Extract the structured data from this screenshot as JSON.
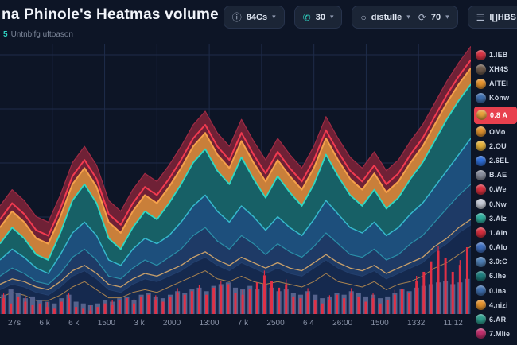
{
  "header": {
    "title": "na Phinole's Heatmas volume",
    "subtitle_count": "5",
    "subtitle_text": "Untnblfg uftoason"
  },
  "icons": {
    "info-icon": "ⓘ",
    "phone-icon": "✆",
    "circle-icon": "○",
    "refresh-icon": "⟳",
    "list-icon": "☰",
    "caret-down-icon": "▾"
  },
  "toolbar": {
    "groups": [
      [
        {
          "icon": "info-icon",
          "accent": false,
          "label": "84Cs",
          "caret": true
        }
      ],
      [
        {
          "icon": "phone-icon",
          "accent": true,
          "label": "30",
          "caret": true
        }
      ],
      [
        {
          "icon": "circle-icon",
          "accent": false,
          "label": "distulle",
          "caret": true
        },
        {
          "icon": "refresh-icon",
          "accent": false,
          "label": "70",
          "caret": true
        }
      ],
      [
        {
          "icon": "list-icon",
          "accent": false,
          "label": "I[]HBS",
          "caret": false
        }
      ]
    ]
  },
  "sidebar": {
    "items": [
      {
        "label": "1.IEB",
        "color": "#d93344",
        "selected": false
      },
      {
        "label": "XH4S",
        "color": "#6e5a4c",
        "selected": false
      },
      {
        "label": "AITEI",
        "color": "#e8952f",
        "selected": false
      },
      {
        "label": "Kónw",
        "color": "#3f6fae",
        "selected": false
      },
      {
        "label": "0.8 A",
        "color": "#e8a23c",
        "selected": true
      },
      {
        "label": "OMo",
        "color": "#e0922f",
        "selected": false
      },
      {
        "label": "2.OU",
        "color": "#e8b43c",
        "selected": false
      },
      {
        "label": "2.6EL",
        "color": "#2f6fd9",
        "selected": false
      },
      {
        "label": "B.AE",
        "color": "#8a8f9e",
        "selected": false
      },
      {
        "label": "0.We",
        "color": "#d9303f",
        "selected": false
      },
      {
        "label": "0.Nw",
        "color": "#c8cdd8",
        "selected": false
      },
      {
        "label": "3.Alz",
        "color": "#2fae9e",
        "selected": false
      },
      {
        "label": "1.Ain",
        "color": "#d92f3f",
        "selected": false
      },
      {
        "label": "0.Alo",
        "color": "#3f6fc0",
        "selected": false
      },
      {
        "label": "3.0:C",
        "color": "#4f7fb5",
        "selected": false
      },
      {
        "label": "6.Ihe",
        "color": "#1e7e7e",
        "selected": false
      },
      {
        "label": "0.Ina",
        "color": "#3f6fae",
        "selected": false
      },
      {
        "label": "4.nizi",
        "color": "#e8952f",
        "selected": false
      },
      {
        "label": "6.AR",
        "color": "#2f9e8e",
        "selected": false
      },
      {
        "label": "7.Mlie",
        "color": "#c42f6e",
        "selected": false
      }
    ]
  },
  "chart_data": {
    "type": "area",
    "title": "na Phinole's Heatmas volume",
    "grid": true,
    "grid_color": "#1e2b49",
    "ylim": [
      0,
      100
    ],
    "x_tick_labels": [
      "27s",
      "6 k",
      "6 k",
      "1500",
      "3 k",
      "2000",
      "13:00",
      "7 k",
      "2500",
      "6 4",
      "26:00",
      "1500",
      "1332",
      "11:12"
    ],
    "bands": [
      {
        "name": "crimson-band",
        "fill": "#6f2136",
        "edge": "#9e2a44",
        "edge_width": 1.2,
        "values": [
          40,
          46,
          42,
          36,
          34,
          44,
          56,
          62,
          55,
          42,
          38,
          46,
          52,
          49,
          55,
          62,
          70,
          75,
          67,
          62,
          72,
          64,
          57,
          65,
          59,
          54,
          62,
          73,
          65,
          58,
          54,
          60,
          53,
          57,
          64,
          70,
          78,
          86,
          93,
          99
        ]
      },
      {
        "name": "orange-band",
        "fill": "#c97f3a",
        "edge": "#f5a04a",
        "edge_width": 2,
        "values": [
          32,
          38,
          34,
          28,
          26,
          36,
          48,
          54,
          47,
          34,
          30,
          38,
          44,
          41,
          47,
          54,
          62,
          67,
          59,
          54,
          64,
          56,
          49,
          57,
          51,
          46,
          54,
          65,
          57,
          50,
          46,
          52,
          45,
          49,
          56,
          62,
          70,
          78,
          85,
          91
        ]
      },
      {
        "name": "teal-band",
        "fill": "#176066",
        "edge": "#2ed9c3",
        "edge_width": 1.8,
        "values": [
          26,
          32,
          28,
          22,
          20,
          30,
          42,
          48,
          41,
          28,
          24,
          32,
          38,
          35,
          41,
          48,
          56,
          61,
          53,
          48,
          58,
          50,
          43,
          51,
          45,
          40,
          48,
          59,
          51,
          44,
          40,
          46,
          39,
          43,
          50,
          56,
          64,
          72,
          79,
          85
        ]
      },
      {
        "name": "blue-band",
        "fill": "#1d4f7c",
        "edge": "#35b8cc",
        "edge_width": 1.5,
        "values": [
          20,
          24,
          21,
          17,
          15,
          22,
          30,
          34,
          29,
          20,
          18,
          24,
          28,
          26,
          29,
          34,
          40,
          44,
          38,
          34,
          40,
          36,
          31,
          36,
          32,
          29,
          35,
          42,
          37,
          32,
          30,
          34,
          29,
          32,
          37,
          41,
          47,
          53,
          59,
          65
        ]
      },
      {
        "name": "navy-band",
        "fill": "#1e3a66",
        "edge": "#2a8fa8",
        "edge_width": 1.2,
        "values": [
          14,
          17,
          15,
          12,
          11,
          15,
          21,
          24,
          20,
          14,
          13,
          17,
          20,
          18,
          21,
          24,
          29,
          32,
          27,
          24,
          29,
          26,
          22,
          26,
          23,
          21,
          25,
          30,
          26,
          22,
          21,
          24,
          20,
          22,
          26,
          29,
          34,
          39,
          44,
          48
        ]
      },
      {
        "name": "deep-navy-band",
        "fill": "#15294e",
        "edge": "#24406e",
        "edge_width": 1,
        "values": [
          9,
          11,
          10,
          8,
          7,
          10,
          14,
          16,
          13,
          9,
          8,
          11,
          13,
          12,
          14,
          16,
          19,
          21,
          18,
          16,
          19,
          17,
          15,
          17,
          15,
          14,
          17,
          20,
          17,
          15,
          14,
          16,
          13,
          15,
          17,
          19,
          23,
          26,
          30,
          33
        ]
      }
    ],
    "lines": [
      {
        "name": "red-signal-line",
        "color": "#f23a50",
        "width": 2,
        "values": [
          35,
          41,
          37,
          31,
          29,
          39,
          51,
          57,
          50,
          37,
          33,
          41,
          47,
          44,
          50,
          57,
          65,
          70,
          62,
          57,
          67,
          59,
          52,
          60,
          54,
          49,
          57,
          68,
          60,
          53,
          49,
          55,
          48,
          52,
          59,
          65,
          73,
          81,
          88,
          94
        ]
      },
      {
        "name": "tan-line-upper",
        "color": "#c9a06a",
        "width": 1.3,
        "values": [
          11,
          13,
          12,
          10,
          9,
          12,
          16,
          18,
          15,
          11,
          10,
          13,
          15,
          14,
          16,
          18,
          21,
          23,
          20,
          18,
          21,
          19,
          17,
          19,
          17,
          16,
          19,
          22,
          19,
          17,
          16,
          18,
          15,
          17,
          19,
          21,
          25,
          28,
          32,
          35
        ]
      },
      {
        "name": "tan-line-lower",
        "color": "#a8824f",
        "width": 1,
        "values": [
          6,
          8,
          7,
          5,
          5,
          7,
          10,
          12,
          9,
          6,
          6,
          8,
          9,
          8,
          10,
          12,
          14,
          16,
          13,
          12,
          14,
          12,
          11,
          12,
          11,
          10,
          12,
          15,
          12,
          11,
          10,
          12,
          9,
          11,
          12,
          14,
          17,
          19,
          22,
          25
        ]
      }
    ],
    "volume_bars": {
      "zone_height_pct": 13,
      "bar_color": "#55628c",
      "candle_color": "#e03046",
      "bar_values": [
        55,
        70,
        60,
        45,
        50,
        40,
        35,
        30,
        45,
        55,
        35,
        30,
        25,
        30,
        40,
        35,
        45,
        50,
        40,
        55,
        60,
        50,
        45,
        55,
        65,
        60,
        70,
        75,
        65,
        80,
        85,
        90,
        75,
        70,
        80,
        70,
        85,
        75,
        65,
        70,
        60,
        55,
        65,
        55,
        45,
        50,
        60,
        55,
        65,
        60,
        50,
        55,
        45,
        50,
        60,
        70,
        65,
        75,
        80,
        85,
        90,
        95,
        85,
        90,
        100
      ],
      "candle_values": [
        45,
        30,
        50,
        35,
        25,
        30,
        20,
        15,
        35,
        45,
        20,
        15,
        10,
        20,
        30,
        25,
        40,
        45,
        30,
        50,
        55,
        40,
        35,
        50,
        60,
        55,
        65,
        70,
        55,
        75,
        80,
        85,
        60,
        55,
        70,
        90,
        110,
        95,
        75,
        85,
        50,
        45,
        60,
        40,
        30,
        40,
        55,
        45,
        60,
        50,
        35,
        45,
        30,
        40,
        55,
        70,
        60,
        95,
        120,
        150,
        180,
        160,
        120,
        140,
        190
      ]
    }
  }
}
